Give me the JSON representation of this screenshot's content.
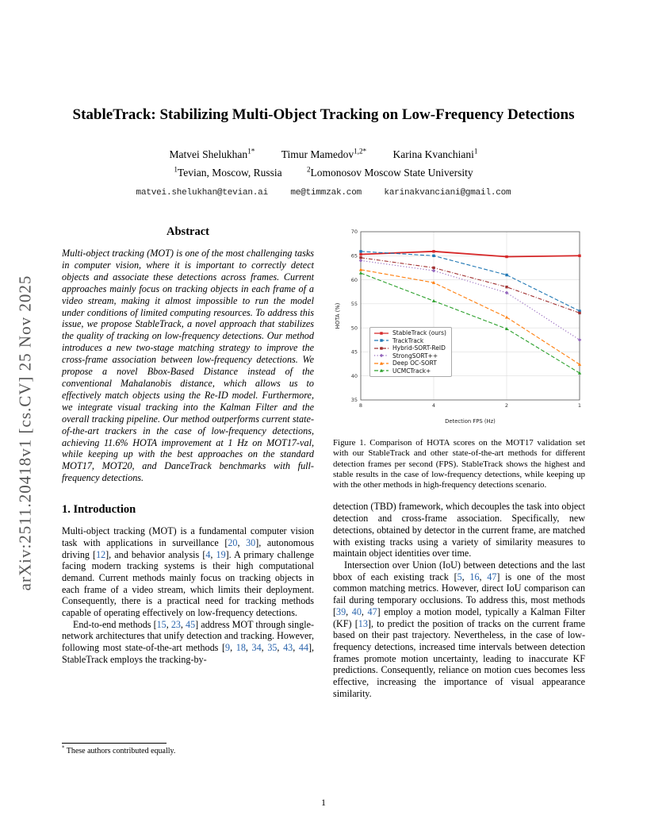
{
  "sidebar": {
    "arxiv_label": "arXiv:2511.20418v1  [cs.CV]  25 Nov 2025"
  },
  "header": {
    "title": "StableTrack: Stabilizing Multi-Object Tracking on Low-Frequency Detections",
    "authors": [
      {
        "name": "Matvei Shelukhan",
        "sup": "1*"
      },
      {
        "name": "Timur Mamedov",
        "sup": "1,2*"
      },
      {
        "name": "Karina Kvanchiani",
        "sup": "1"
      }
    ],
    "affiliations": [
      {
        "sup": "1",
        "text": "Tevian, Moscow, Russia"
      },
      {
        "sup": "2",
        "text": "Lomonosov Moscow State University"
      }
    ],
    "emails": [
      "matvei.shelukhan@tevian.ai",
      "me@timmzak.com",
      "karinakvanciani@gmail.com"
    ]
  },
  "abstract": {
    "heading": "Abstract",
    "text": "Multi-object tracking (MOT) is one of the most challenging tasks in computer vision, where it is important to correctly detect objects and associate these detections across frames. Current approaches mainly focus on tracking objects in each frame of a video stream, making it almost impossible to run the model under conditions of limited computing resources. To address this issue, we propose StableTrack, a novel approach that stabilizes the quality of tracking on low-frequency detections. Our method introduces a new two-stage matching strategy to improve the cross-frame association between low-frequency detections. We propose a novel Bbox-Based Distance instead of the conventional Mahalanobis distance, which allows us to effectively match objects using the Re-ID model. Furthermore, we integrate visual tracking into the Kalman Filter and the overall tracking pipeline. Our method outperforms current state-of-the-art trackers in the case of low-frequency detections, achieving 11.6% HOTA improvement at 1 Hz on MOT17-val, while keeping up with the best approaches on the standard MOT17, MOT20, and DanceTrack benchmarks with full-frequency detections."
  },
  "figure": {
    "caption": "Figure 1. Comparison of HOTA scores on the MOT17 validation set with our StableTrack and other state-of-the-art methods for different detection frames per second (FPS). StableTrack shows the highest and stable results in the case of low-frequency detections, while keeping up with the other methods in high-frequency detections scenario."
  },
  "chart_data": {
    "type": "line",
    "title": "",
    "xlabel": "Detection FPS (Hz)",
    "ylabel": "HOTA (%)",
    "x_scale": "log2",
    "x": [
      8,
      4,
      2,
      1
    ],
    "x_ticks": [
      8,
      4,
      2,
      1
    ],
    "ylim": [
      35,
      70
    ],
    "y_ticks": [
      35,
      40,
      45,
      50,
      55,
      60,
      65,
      70
    ],
    "grid": true,
    "legend_position": "center-left",
    "series": [
      {
        "name": "StableTrack (ours)",
        "color": "#d62728",
        "dash": "solid",
        "marker": "square",
        "values": [
          65.3,
          65.9,
          64.8,
          65.0
        ]
      },
      {
        "name": "TrackTrack",
        "color": "#1f77b4",
        "dash": "dashed",
        "marker": "square",
        "values": [
          65.9,
          65.0,
          61.0,
          53.5
        ]
      },
      {
        "name": "Hybrid-SORT-ReID",
        "color": "#a03030",
        "dash": "dashdot",
        "marker": "square",
        "values": [
          64.6,
          62.5,
          58.5,
          53.1
        ]
      },
      {
        "name": "StrongSORT++",
        "color": "#9467bd",
        "dash": "dotted",
        "marker": "diamond",
        "values": [
          64.0,
          61.9,
          57.3,
          47.5
        ]
      },
      {
        "name": "Deep OC-SORT",
        "color": "#ff7f0e",
        "dash": "dashed",
        "marker": "triangle",
        "values": [
          62.1,
          59.4,
          52.2,
          42.4
        ]
      },
      {
        "name": "UCMCTrack+",
        "color": "#2ca02c",
        "dash": "dashed",
        "marker": "triangle",
        "values": [
          61.4,
          55.6,
          49.8,
          40.6
        ]
      }
    ]
  },
  "sections": {
    "intro": {
      "heading": "1. Introduction",
      "p1": [
        {
          "t": "Multi-object tracking (MOT) is a fundamental computer vision task with applications in surveillance ["
        },
        {
          "c": "20"
        },
        {
          "t": ", "
        },
        {
          "c": "30"
        },
        {
          "t": "], autonomous driving ["
        },
        {
          "c": "12"
        },
        {
          "t": "], and behavior analysis ["
        },
        {
          "c": "4"
        },
        {
          "t": ", "
        },
        {
          "c": "19"
        },
        {
          "t": "]. A primary challenge facing modern tracking systems is their high computational demand. Current methods mainly focus on tracking objects in each frame of a video stream, which limits their deployment. Consequently, there is a practical need for tracking methods capable of operating effectively on low-frequency detections."
        }
      ],
      "p2": [
        {
          "t": "End-to-end methods ["
        },
        {
          "c": "15"
        },
        {
          "t": ", "
        },
        {
          "c": "23"
        },
        {
          "t": ", "
        },
        {
          "c": "45"
        },
        {
          "t": "] address MOT through single-network architectures that unify detection and tracking. However, following most state-of-the-art methods ["
        },
        {
          "c": "9"
        },
        {
          "t": ", "
        },
        {
          "c": "18"
        },
        {
          "t": ", "
        },
        {
          "c": "34"
        },
        {
          "t": ", "
        },
        {
          "c": "35"
        },
        {
          "t": ", "
        },
        {
          "c": "43"
        },
        {
          "t": ", "
        },
        {
          "c": "44"
        },
        {
          "t": "], StableTrack employs the tracking-by-"
        }
      ]
    },
    "continuation": {
      "p1": [
        {
          "t": "detection (TBD) framework, which decouples the task into object detection and cross-frame association. Specifically, new detections, obtained by detector in the current frame, are matched with existing tracks using a variety of similarity measures to maintain object identities over time."
        }
      ],
      "p2": [
        {
          "t": "Intersection over Union (IoU) between detections and the last bbox of each existing track ["
        },
        {
          "c": "5"
        },
        {
          "t": ", "
        },
        {
          "c": "16"
        },
        {
          "t": ", "
        },
        {
          "c": "47"
        },
        {
          "t": "] is one of the most common matching metrics. However, direct IoU comparison can fail during temporary occlusions. To address this, most methods ["
        },
        {
          "c": "39"
        },
        {
          "t": ", "
        },
        {
          "c": "40"
        },
        {
          "t": ", "
        },
        {
          "c": "47"
        },
        {
          "t": "] employ a motion model, typically a Kalman Filter (KF) ["
        },
        {
          "c": "13"
        },
        {
          "t": "], to predict the position of tracks on the current frame based on their past trajectory. Nevertheless, in the case of low-frequency detections, increased time intervals between detection frames promote motion uncertainty, leading to inaccurate KF predictions. Consequently, reliance on motion cues becomes less effective, increasing the importance of visual appearance similarity."
        }
      ]
    }
  },
  "footnote": {
    "marker": "*",
    "text": "These authors contributed equally."
  },
  "footer": {
    "page_number": "1"
  },
  "colors": {
    "citation": "#2b65ad",
    "accent_red": "#d62728"
  }
}
